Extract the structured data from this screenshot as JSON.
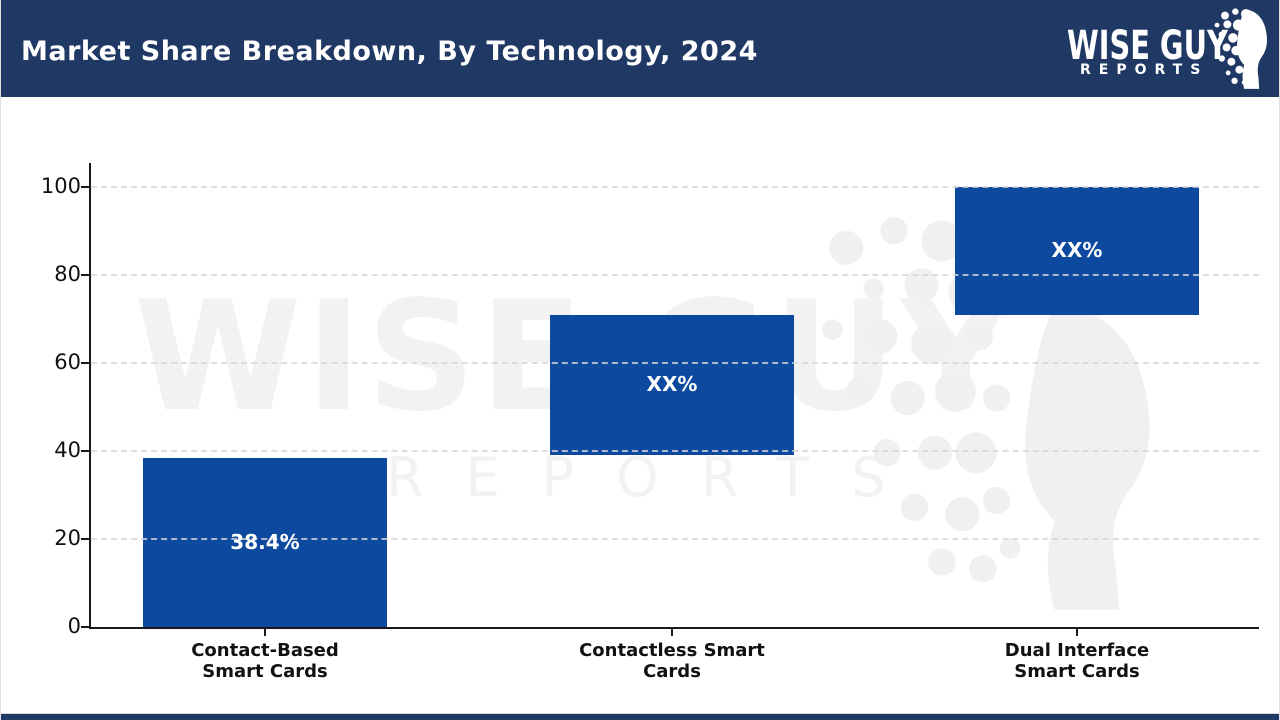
{
  "header": {
    "title": "Market Share Breakdown, By Technology, 2024"
  },
  "logo": {
    "name": "WISE GUY",
    "tagline": "REPORTS"
  },
  "watermark": {
    "line1": "WISE GUY",
    "line2": "REPORTS"
  },
  "chart_data": {
    "type": "bar",
    "subtype": "floating-segment-waterfall",
    "title": "Market Share Breakdown, By Technology, 2024",
    "xlabel": "",
    "ylabel": "",
    "ylim": [
      0,
      105
    ],
    "y_ticks": [
      0,
      20,
      40,
      60,
      80,
      100
    ],
    "grid": "horizontal-dashed",
    "legend": "none",
    "bar_color": "#0d4a9f",
    "label_color": "#ffffff",
    "categories": [
      [
        "Contact-Based",
        "Smart Cards"
      ],
      [
        "Contactless Smart",
        "Cards"
      ],
      [
        "Dual Interface",
        "Smart Cards"
      ]
    ],
    "segments": [
      {
        "category": "Contact-Based Smart Cards",
        "start": 0,
        "end": 38.4,
        "label": "38.4%"
      },
      {
        "category": "Contactless Smart Cards",
        "start": 39,
        "end": 71,
        "label": "XX%"
      },
      {
        "category": "Dual Interface Smart Cards",
        "start": 71,
        "end": 100,
        "label": "XX%"
      }
    ]
  },
  "colors": {
    "header_bg": "#1f3864",
    "bar": "#0d4a9f",
    "watermark": "#f2f2f2",
    "grid": "#d6d6d6"
  }
}
